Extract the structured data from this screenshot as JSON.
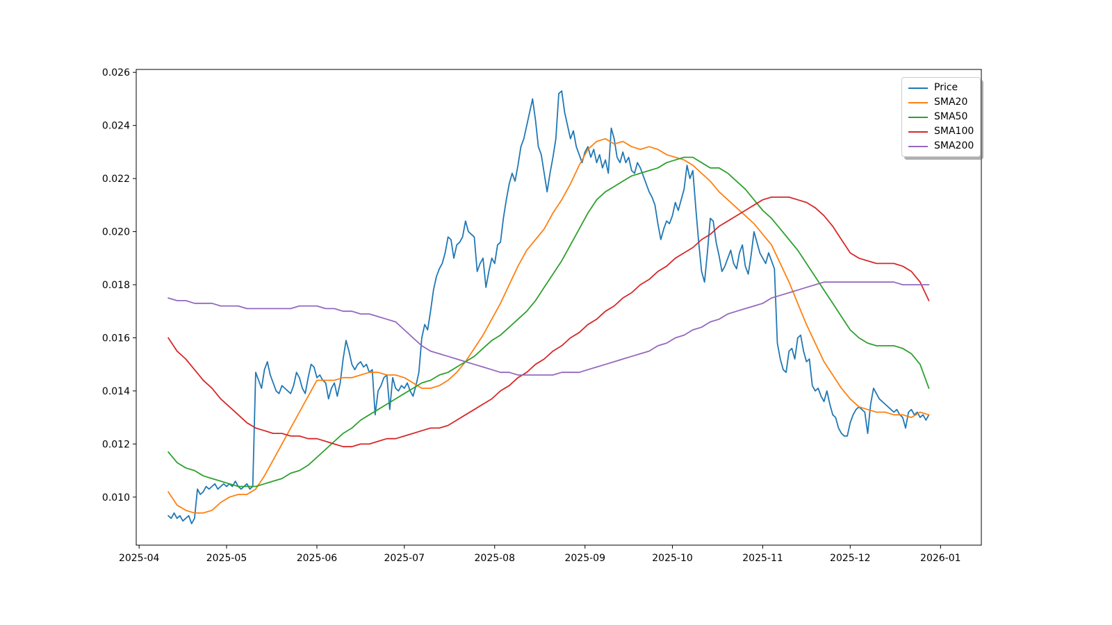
{
  "figure": {
    "background_color": "#ffffff",
    "axes_frame_color": "#000000"
  },
  "chart_data": {
    "type": "line",
    "title": "",
    "xlabel": "",
    "ylabel": "",
    "grid": false,
    "legend": {
      "position": "upper right",
      "entries": [
        "Price",
        "SMA20",
        "SMA50",
        "SMA100",
        "SMA200"
      ]
    },
    "x_axis": {
      "unit": "date",
      "day_offset_origin": "2025-04-01",
      "tick_labels": [
        "2025-04",
        "2025-05",
        "2025-06",
        "2025-07",
        "2025-08",
        "2025-09",
        "2025-10",
        "2025-11",
        "2025-12",
        "2026-01"
      ],
      "tick_day_offsets": [
        0,
        30,
        61,
        91,
        122,
        153,
        183,
        214,
        244,
        275
      ],
      "range_day_offsets": [
        -1,
        289
      ]
    },
    "y_axis": {
      "tick_labels": [
        "0.010",
        "0.012",
        "0.014",
        "0.016",
        "0.018",
        "0.020",
        "0.022",
        "0.024",
        "0.026"
      ],
      "tick_values": [
        0.01,
        0.012,
        0.014,
        0.016,
        0.018,
        0.02,
        0.022,
        0.024,
        0.026
      ],
      "range": [
        0.00819,
        0.02611
      ]
    },
    "series": [
      {
        "name": "Price",
        "color": "#1f77b4",
        "x_start_day": 10,
        "x_step_days": 1,
        "values": [
          0.0093,
          0.0092,
          0.0094,
          0.0092,
          0.0093,
          0.0091,
          0.0092,
          0.0093,
          0.009,
          0.0092,
          0.0103,
          0.0101,
          0.0102,
          0.0104,
          0.0103,
          0.0104,
          0.0105,
          0.0103,
          0.0104,
          0.0105,
          0.0104,
          0.0105,
          0.0104,
          0.0106,
          0.0104,
          0.0103,
          0.0104,
          0.0105,
          0.0103,
          0.0104,
          0.0147,
          0.0144,
          0.0141,
          0.0148,
          0.0151,
          0.0146,
          0.0143,
          0.014,
          0.0139,
          0.0142,
          0.0141,
          0.014,
          0.0139,
          0.0142,
          0.0147,
          0.0145,
          0.0141,
          0.0139,
          0.0145,
          0.015,
          0.0149,
          0.0145,
          0.0146,
          0.0144,
          0.0143,
          0.0137,
          0.0141,
          0.0143,
          0.0138,
          0.0143,
          0.0152,
          0.0159,
          0.0155,
          0.015,
          0.0148,
          0.015,
          0.0151,
          0.0149,
          0.015,
          0.0147,
          0.0148,
          0.0131,
          0.014,
          0.0142,
          0.0145,
          0.0146,
          0.0133,
          0.0145,
          0.0141,
          0.014,
          0.0142,
          0.0141,
          0.0143,
          0.014,
          0.0138,
          0.0142,
          0.0147,
          0.016,
          0.0165,
          0.0163,
          0.017,
          0.0178,
          0.0183,
          0.0186,
          0.0188,
          0.0192,
          0.0198,
          0.0197,
          0.019,
          0.0195,
          0.0196,
          0.0198,
          0.0204,
          0.02,
          0.0199,
          0.0198,
          0.0185,
          0.0188,
          0.019,
          0.0179,
          0.0185,
          0.019,
          0.0188,
          0.0195,
          0.0196,
          0.0205,
          0.0212,
          0.0218,
          0.0222,
          0.0219,
          0.0225,
          0.0232,
          0.0235,
          0.024,
          0.0245,
          0.025,
          0.0242,
          0.0232,
          0.0229,
          0.0222,
          0.0215,
          0.0222,
          0.0228,
          0.0235,
          0.0252,
          0.0253,
          0.0245,
          0.024,
          0.0235,
          0.0238,
          0.0232,
          0.0229,
          0.0226,
          0.023,
          0.0232,
          0.0228,
          0.0231,
          0.0226,
          0.0229,
          0.0224,
          0.0227,
          0.0222,
          0.0239,
          0.0235,
          0.0228,
          0.0226,
          0.023,
          0.0226,
          0.0228,
          0.0223,
          0.0222,
          0.0226,
          0.0224,
          0.0221,
          0.0218,
          0.0215,
          0.0213,
          0.021,
          0.0203,
          0.0197,
          0.0201,
          0.0204,
          0.0203,
          0.0206,
          0.0211,
          0.0208,
          0.0212,
          0.0216,
          0.0225,
          0.022,
          0.0223,
          0.0209,
          0.0196,
          0.0185,
          0.0181,
          0.0192,
          0.0205,
          0.0204,
          0.0196,
          0.0191,
          0.0185,
          0.0187,
          0.019,
          0.0193,
          0.0188,
          0.0186,
          0.0192,
          0.0195,
          0.0187,
          0.0184,
          0.0191,
          0.02,
          0.0196,
          0.0192,
          0.019,
          0.0188,
          0.0192,
          0.0189,
          0.0186,
          0.0158,
          0.0152,
          0.0148,
          0.0147,
          0.0155,
          0.0156,
          0.0152,
          0.016,
          0.0161,
          0.0155,
          0.0151,
          0.0152,
          0.0142,
          0.014,
          0.0141,
          0.0138,
          0.0136,
          0.014,
          0.0135,
          0.0131,
          0.013,
          0.0126,
          0.0124,
          0.0123,
          0.0123,
          0.0128,
          0.0131,
          0.0133,
          0.0134,
          0.0133,
          0.0132,
          0.0124,
          0.0135,
          0.0141,
          0.0139,
          0.0137,
          0.0136,
          0.0135,
          0.0134,
          0.0133,
          0.0132,
          0.0133,
          0.0131,
          0.013,
          0.0126,
          0.0132,
          0.0133,
          0.0131,
          0.0132,
          0.013,
          0.0131,
          0.0129,
          0.0131
        ]
      },
      {
        "name": "SMA20",
        "color": "#ff7f0e",
        "x_start_day": 10,
        "x_step_days": 3,
        "values": [
          0.0102,
          0.0097,
          0.0095,
          0.0094,
          0.0094,
          0.0095,
          0.0098,
          0.01,
          0.0101,
          0.0101,
          0.0103,
          0.0108,
          0.0114,
          0.012,
          0.0126,
          0.0132,
          0.0138,
          0.0144,
          0.0144,
          0.0144,
          0.0145,
          0.0145,
          0.0146,
          0.0147,
          0.0147,
          0.0146,
          0.0146,
          0.0145,
          0.0143,
          0.0141,
          0.0141,
          0.0142,
          0.0144,
          0.0147,
          0.0151,
          0.0156,
          0.0161,
          0.0167,
          0.0173,
          0.018,
          0.0187,
          0.0193,
          0.0197,
          0.0201,
          0.0207,
          0.0212,
          0.0218,
          0.0225,
          0.0231,
          0.0234,
          0.0235,
          0.0233,
          0.0234,
          0.0232,
          0.0231,
          0.0232,
          0.0231,
          0.0229,
          0.0228,
          0.0227,
          0.0225,
          0.0222,
          0.0219,
          0.0215,
          0.0212,
          0.0209,
          0.0206,
          0.0203,
          0.0199,
          0.0195,
          0.0188,
          0.0181,
          0.0173,
          0.0165,
          0.0158,
          0.0151,
          0.0146,
          0.0141,
          0.0137,
          0.0134,
          0.0133,
          0.0132,
          0.0132,
          0.0131,
          0.0131,
          0.013,
          0.0132,
          0.0131
        ]
      },
      {
        "name": "SMA50",
        "color": "#2ca02c",
        "x_start_day": 10,
        "x_step_days": 3,
        "values": [
          0.0117,
          0.0113,
          0.0111,
          0.011,
          0.0108,
          0.0107,
          0.0106,
          0.0105,
          0.0104,
          0.0104,
          0.0104,
          0.0105,
          0.0106,
          0.0107,
          0.0109,
          0.011,
          0.0112,
          0.0115,
          0.0118,
          0.0121,
          0.0124,
          0.0126,
          0.0129,
          0.0131,
          0.0133,
          0.0135,
          0.0137,
          0.0139,
          0.0141,
          0.0143,
          0.0144,
          0.0146,
          0.0147,
          0.0149,
          0.0151,
          0.0153,
          0.0156,
          0.0159,
          0.0161,
          0.0164,
          0.0167,
          0.017,
          0.0174,
          0.0179,
          0.0184,
          0.0189,
          0.0195,
          0.0201,
          0.0207,
          0.0212,
          0.0215,
          0.0217,
          0.0219,
          0.0221,
          0.0222,
          0.0223,
          0.0224,
          0.0226,
          0.0227,
          0.0228,
          0.0228,
          0.0226,
          0.0224,
          0.0224,
          0.0222,
          0.0219,
          0.0216,
          0.0212,
          0.0208,
          0.0205,
          0.0201,
          0.0197,
          0.0193,
          0.0188,
          0.0183,
          0.0178,
          0.0173,
          0.0168,
          0.0163,
          0.016,
          0.0158,
          0.0157,
          0.0157,
          0.0157,
          0.0156,
          0.0154,
          0.015,
          0.0141
        ]
      },
      {
        "name": "SMA100",
        "color": "#d62728",
        "x_start_day": 10,
        "x_step_days": 3,
        "values": [
          0.016,
          0.0155,
          0.0152,
          0.0148,
          0.0144,
          0.0141,
          0.0137,
          0.0134,
          0.0131,
          0.0128,
          0.0126,
          0.0125,
          0.0124,
          0.0124,
          0.0123,
          0.0123,
          0.0122,
          0.0122,
          0.0121,
          0.012,
          0.0119,
          0.0119,
          0.012,
          0.012,
          0.0121,
          0.0122,
          0.0122,
          0.0123,
          0.0124,
          0.0125,
          0.0126,
          0.0126,
          0.0127,
          0.0129,
          0.0131,
          0.0133,
          0.0135,
          0.0137,
          0.014,
          0.0142,
          0.0145,
          0.0147,
          0.015,
          0.0152,
          0.0155,
          0.0157,
          0.016,
          0.0162,
          0.0165,
          0.0167,
          0.017,
          0.0172,
          0.0175,
          0.0177,
          0.018,
          0.0182,
          0.0185,
          0.0187,
          0.019,
          0.0192,
          0.0194,
          0.0197,
          0.0199,
          0.0202,
          0.0204,
          0.0206,
          0.0208,
          0.021,
          0.0212,
          0.0213,
          0.0213,
          0.0213,
          0.0212,
          0.0211,
          0.0209,
          0.0206,
          0.0202,
          0.0197,
          0.0192,
          0.019,
          0.0189,
          0.0188,
          0.0188,
          0.0188,
          0.0187,
          0.0185,
          0.0181,
          0.0174
        ]
      },
      {
        "name": "SMA200",
        "color": "#9467bd",
        "x_start_day": 10,
        "x_step_days": 3,
        "values": [
          0.0175,
          0.0174,
          0.0174,
          0.0173,
          0.0173,
          0.0173,
          0.0172,
          0.0172,
          0.0172,
          0.0171,
          0.0171,
          0.0171,
          0.0171,
          0.0171,
          0.0171,
          0.0172,
          0.0172,
          0.0172,
          0.0171,
          0.0171,
          0.017,
          0.017,
          0.0169,
          0.0169,
          0.0168,
          0.0167,
          0.0166,
          0.0163,
          0.016,
          0.0157,
          0.0155,
          0.0154,
          0.0153,
          0.0152,
          0.0151,
          0.015,
          0.0149,
          0.0148,
          0.0147,
          0.0147,
          0.0146,
          0.0146,
          0.0146,
          0.0146,
          0.0146,
          0.0147,
          0.0147,
          0.0147,
          0.0148,
          0.0149,
          0.015,
          0.0151,
          0.0152,
          0.0153,
          0.0154,
          0.0155,
          0.0157,
          0.0158,
          0.016,
          0.0161,
          0.0163,
          0.0164,
          0.0166,
          0.0167,
          0.0169,
          0.017,
          0.0171,
          0.0172,
          0.0173,
          0.0175,
          0.0176,
          0.0177,
          0.0178,
          0.0179,
          0.018,
          0.0181,
          0.0181,
          0.0181,
          0.0181,
          0.0181,
          0.0181,
          0.0181,
          0.0181,
          0.0181,
          0.018,
          0.018,
          0.018,
          0.018
        ]
      }
    ]
  }
}
